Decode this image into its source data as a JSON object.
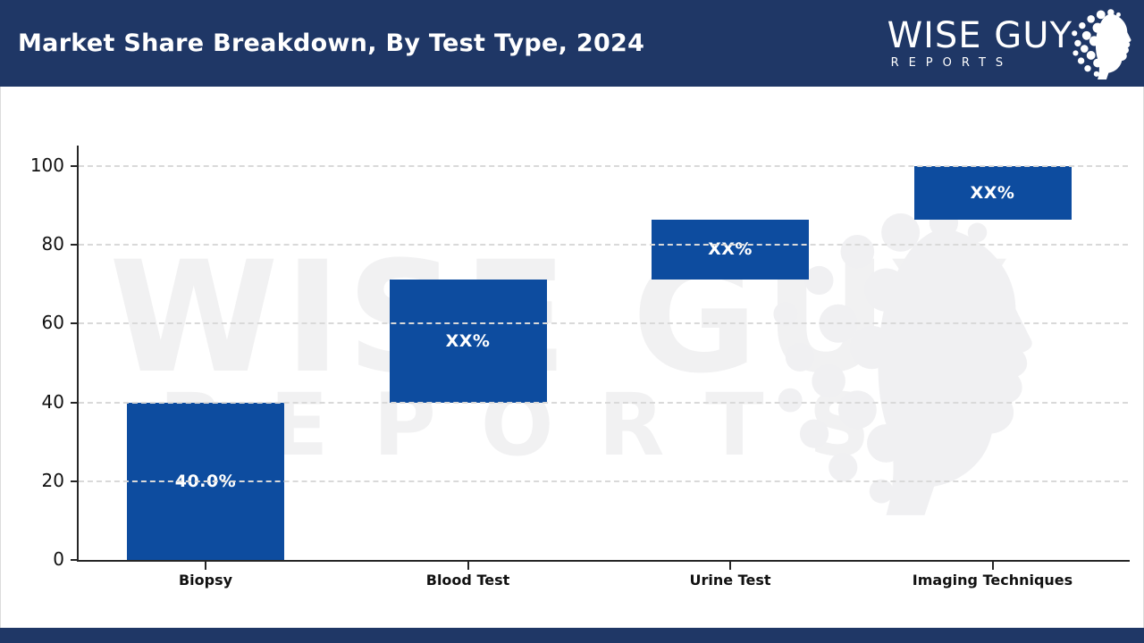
{
  "header": {
    "title": "Market Share Breakdown, By Test Type, 2024",
    "bg_color": "#1f3766",
    "logo": {
      "line1": "WISE GUY",
      "line2": "REPORTS"
    }
  },
  "watermark": {
    "line1": "WISE GUY",
    "line2": "REPORTS"
  },
  "chart_data": {
    "type": "bar",
    "subtype": "waterfall",
    "title": "Market Share Breakdown, By Test Type, 2024",
    "categories": [
      "Biopsy",
      "Blood Test",
      "Urine Test",
      "Imaging Techniques"
    ],
    "series": [
      {
        "name": "Market Share (%)",
        "segments": [
          {
            "category": "Biopsy",
            "start": 0,
            "end": 40,
            "label": "40.0%"
          },
          {
            "category": "Blood Test",
            "start": 40,
            "end": 71.2,
            "label": "XX%"
          },
          {
            "category": "Urine Test",
            "start": 71.2,
            "end": 86.4,
            "label": "XX%"
          },
          {
            "category": "Imaging Techniques",
            "start": 86.4,
            "end": 100,
            "label": "XX%"
          }
        ]
      }
    ],
    "xlabel": "",
    "ylabel": "",
    "ylim": [
      0,
      100
    ],
    "yticks": [
      0,
      20,
      40,
      60,
      80,
      100
    ],
    "grid": "horizontal-dashed",
    "legend": "none",
    "bar_color": "#0d4c9f",
    "value_label_color": "#ffffff"
  },
  "footer": {
    "bg_color": "#1f3766"
  }
}
